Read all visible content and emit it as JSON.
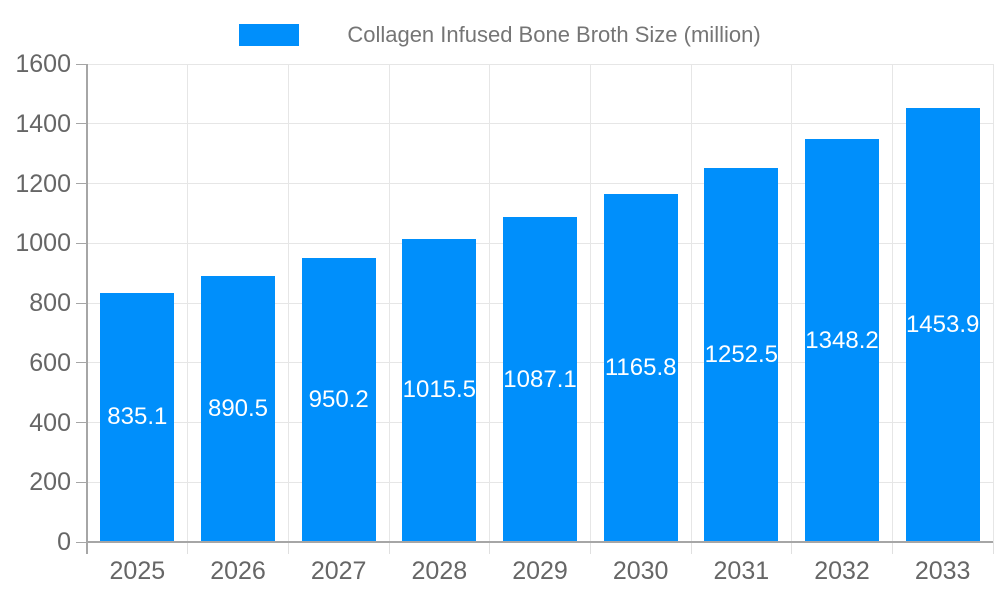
{
  "legend": {
    "label": "Collagen Infused Bone Broth Size (million)",
    "swatch_color": "#008FFB"
  },
  "chart_data": {
    "type": "bar",
    "title": "Collagen Infused Bone Broth Size (million)",
    "xlabel": "",
    "ylabel": "",
    "categories": [
      "2025",
      "2026",
      "2027",
      "2028",
      "2029",
      "2030",
      "2031",
      "2032",
      "2033"
    ],
    "series": [
      {
        "name": "Collagen Infused Bone Broth Size (million)",
        "values": [
          835.1,
          890.5,
          950.2,
          1015.5,
          1087.1,
          1165.8,
          1252.5,
          1348.2,
          1453.9
        ]
      }
    ],
    "bar_labels": [
      "835.1",
      "890.5",
      "950.2",
      "1015.5",
      "1087.1",
      "1165.8",
      "1252.5",
      "1348.2",
      "1453.9"
    ],
    "ylim": [
      0,
      1600
    ],
    "y_ticks": [
      0,
      200,
      400,
      600,
      800,
      1000,
      1200,
      1400,
      1600
    ],
    "grid": true,
    "legend_position": "top",
    "colors": {
      "bar": "#008FFB",
      "bar_label": "#FFFFFF",
      "axis_label": "#666666",
      "legend_label": "#757575",
      "gridline": "#E6E6E6",
      "axis_line": "#A6A6A6",
      "x_tick": "#E0E0E0",
      "y_tick": "#A6A6A6"
    }
  }
}
